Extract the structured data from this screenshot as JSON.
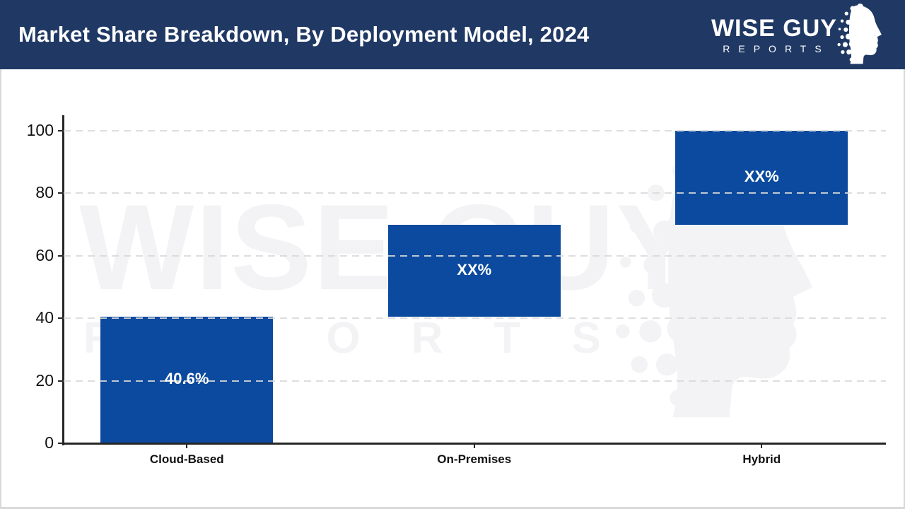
{
  "header": {
    "title": "Market Share Breakdown, By Deployment Model, 2024",
    "logo": {
      "wordmark": "WISE GUY",
      "subtitle": "REPORTS"
    }
  },
  "watermark": {
    "wordmark": "WISE GUY",
    "subtitle": "REPORTS"
  },
  "colors": {
    "header_bg": "#203864",
    "bar": "#0b4a9e",
    "bar_label": "#ffffff",
    "grid": "#d9d9d9",
    "axis": "#262626",
    "watermark": "#f3f3f5",
    "title_text": "#ffffff"
  },
  "chart_data": {
    "type": "bar",
    "subtype": "waterfall",
    "title": "Market Share Breakdown, By Deployment Model, 2024",
    "xlabel": "",
    "ylabel": "",
    "categories": [
      "Cloud-Based",
      "On-Premises",
      "Hybrid"
    ],
    "segments": [
      {
        "category": "Cloud-Based",
        "start": 0,
        "end": 40.6,
        "value": 40.6,
        "label": "40.6%"
      },
      {
        "category": "On-Premises",
        "start": 40.6,
        "end": 70,
        "value": 29.4,
        "label": "XX%"
      },
      {
        "category": "Hybrid",
        "start": 70,
        "end": 100,
        "value": 30,
        "label": "XX%"
      }
    ],
    "yticks": [
      0,
      20,
      40,
      60,
      80,
      100
    ],
    "ylim": [
      0,
      105
    ],
    "grid": "horizontal-dashed-over-bars",
    "legend": "none"
  }
}
